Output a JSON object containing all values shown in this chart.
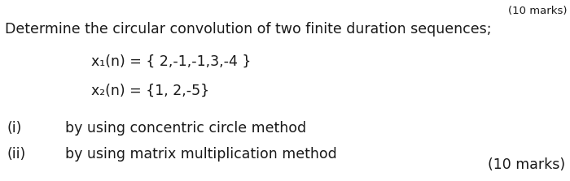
{
  "bg_color": "#ffffff",
  "line1": "Determine the circular convolution of two finite duration sequences;",
  "line2_label": "x₁(n) = { 2,-1,-1,3,-4 }",
  "line3_label": "x₂(n) = {1, 2,-5}",
  "item_i": "(i)",
  "item_i_text": "by using concentric circle method",
  "item_ii": "(ii)",
  "item_ii_text": "by using matrix multiplication method",
  "marks_text": "(10 marks)",
  "top_marks_text": "(10 marks)",
  "font_size_main": 12.5,
  "font_size_top": 9.5,
  "text_color": "#1a1a1a"
}
